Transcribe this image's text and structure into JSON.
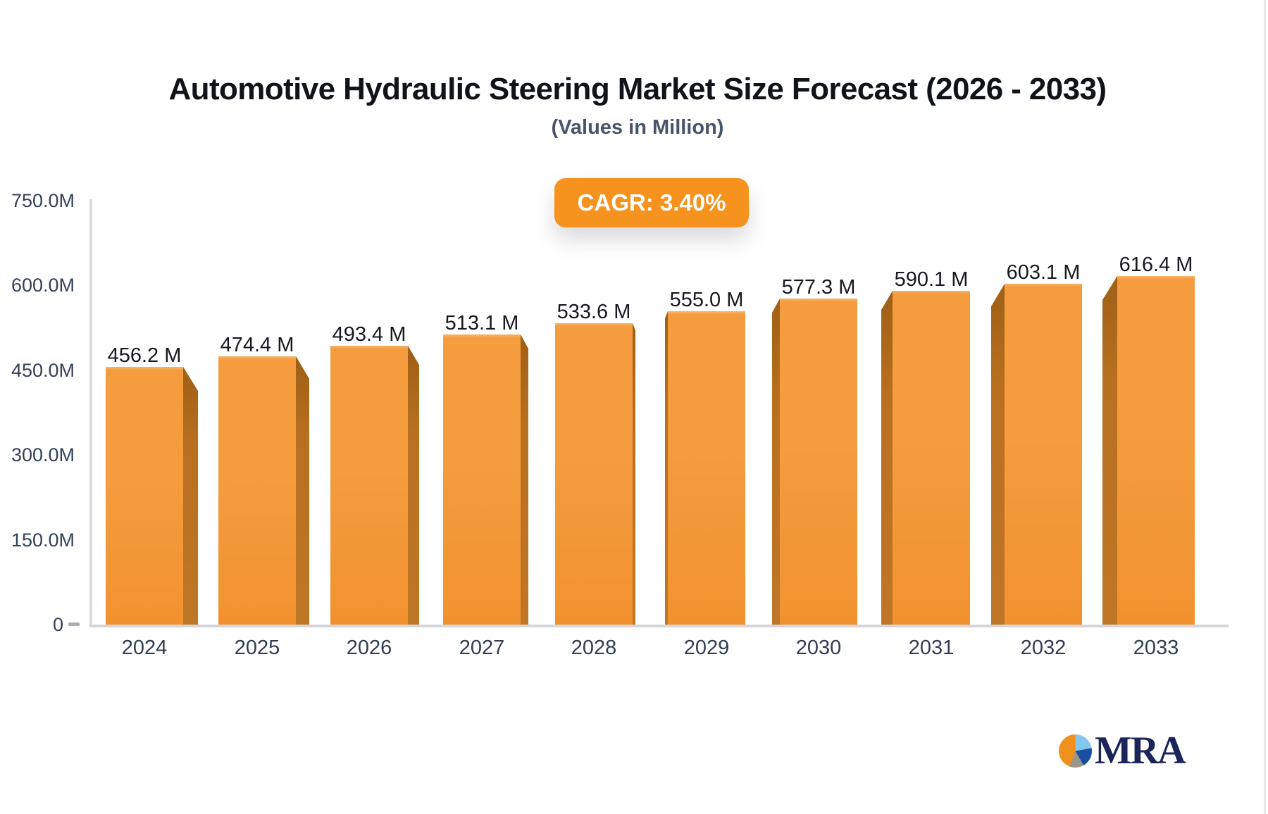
{
  "header": {
    "title": "Automotive Hydraulic Steering Market Size Forecast (2026 - 2033)",
    "subtitle": "(Values in Million)",
    "cagr_badge": "CAGR: 3.40%"
  },
  "chart_data": {
    "type": "bar",
    "title": "Automotive Hydraulic Steering Market Size Forecast (2026 - 2033)",
    "subtitle": "(Values in Million)",
    "categories": [
      "2024",
      "2025",
      "2026",
      "2027",
      "2028",
      "2029",
      "2030",
      "2031",
      "2032",
      "2033"
    ],
    "values": [
      456.2,
      474.4,
      493.4,
      513.1,
      533.6,
      555.0,
      577.3,
      590.1,
      603.1,
      616.4
    ],
    "bar_labels": [
      "456.2 M",
      "474.4 M",
      "493.4 M",
      "513.1 M",
      "533.6 M",
      "555.0 M",
      "577.3 M",
      "590.1 M",
      "603.1 M",
      "616.4 M"
    ],
    "ytick_labels": [
      "750.0M",
      "600.0M",
      "450.0M",
      "300.0M",
      "150.0M"
    ],
    "ytick_values": [
      750,
      600,
      450,
      300,
      150
    ],
    "zero_label": "0",
    "ylim": [
      0,
      750
    ],
    "xlabel": "",
    "ylabel": "",
    "grid": false,
    "legend": false,
    "unit": "Million"
  },
  "annotations": {
    "cagr_value": "3.40%"
  },
  "colors": {
    "badge_bg": "#F6921E",
    "bar_face_top": "#F8B264",
    "bar_face_mid": "#F49C3E",
    "bar_face_bottom": "#F1922E",
    "bar_side_dark": "#9E5F15",
    "bar_side_light": "#BF7626",
    "axis_line": "#DBDBDF",
    "title_text": "#101318",
    "subtitle_text": "#47556A",
    "tick_text": "#33405A",
    "logo_navy": "#1B2559",
    "logo_orange": "#F0911E",
    "logo_lightblue": "#85C6EC",
    "logo_blue": "#1A4FA0",
    "logo_gray": "#9A968C"
  },
  "logo": {
    "text": "MRA"
  }
}
